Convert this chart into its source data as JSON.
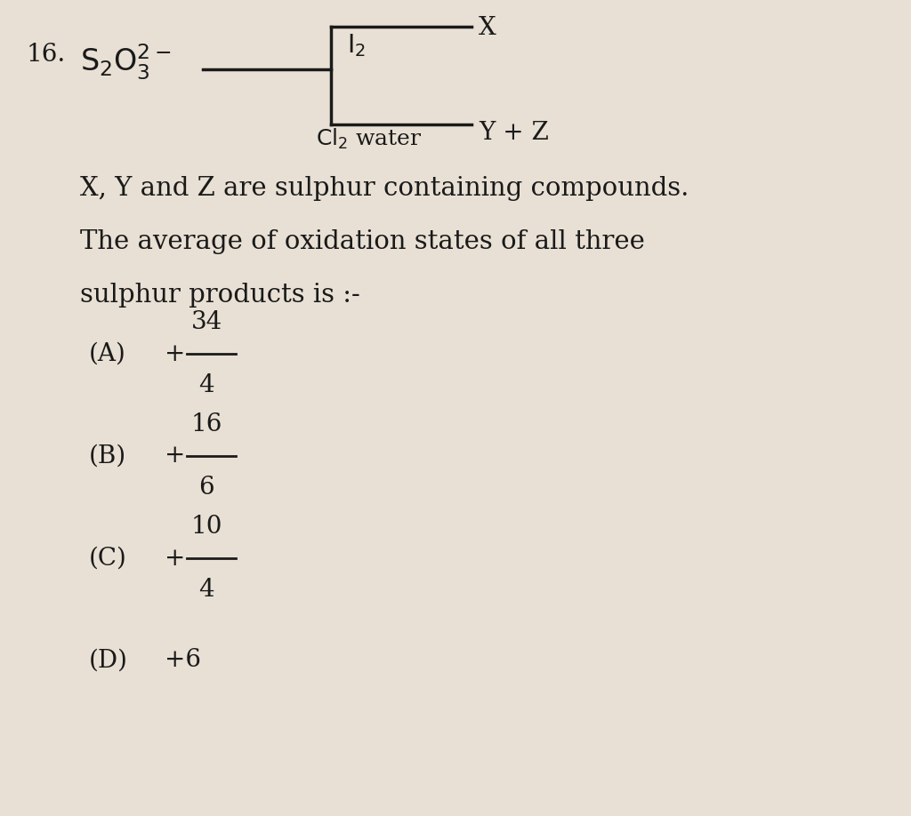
{
  "background_color": "#e8e0d4",
  "text_color": "#1a1a1a",
  "font_size_main": 20,
  "font_size_sub": 18,
  "question_number": "16.",
  "desc1": "X, Y and Z are sulphur containing compounds.",
  "desc2": "The average of oxidation states of all three",
  "desc3": "sulphur products is :-",
  "options": [
    {
      "label": "(A)",
      "text": "$+\\dfrac{34}{4}$"
    },
    {
      "label": "(B)",
      "text": "$+\\dfrac{16}{6}$"
    },
    {
      "label": "(C)",
      "text": "$+\\dfrac{10}{4}$"
    },
    {
      "label": "(D)",
      "text": "$+6$"
    }
  ]
}
